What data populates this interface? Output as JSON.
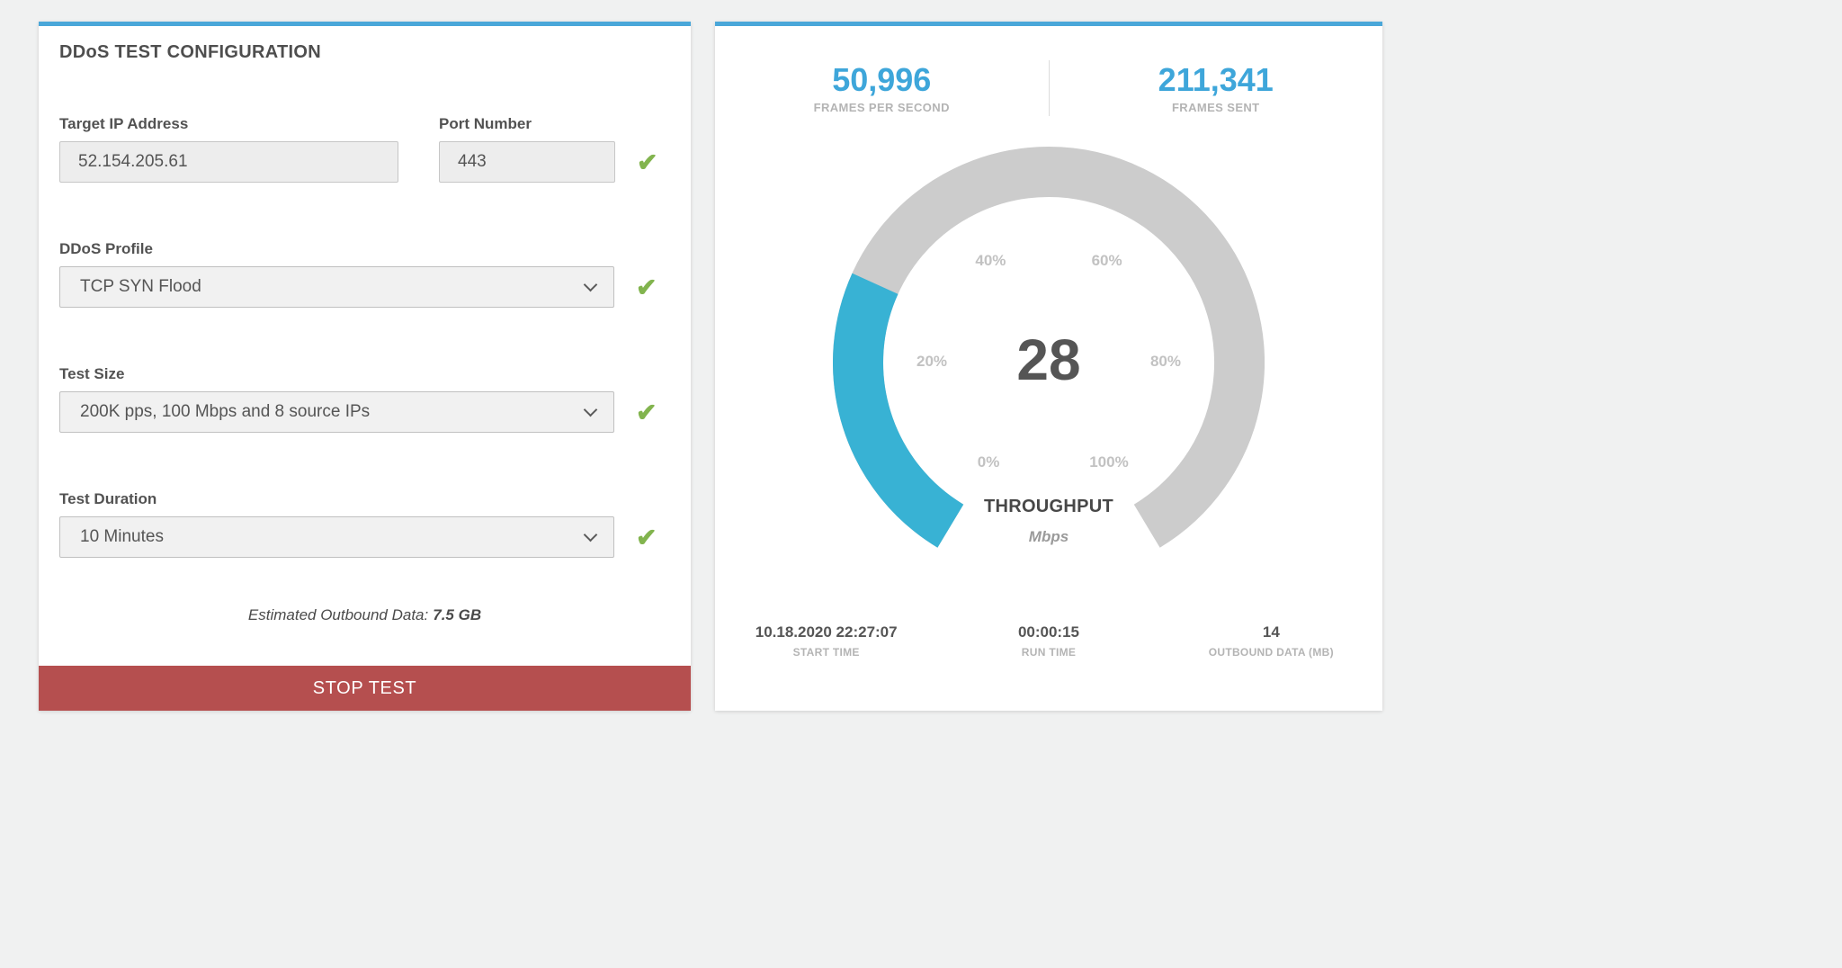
{
  "colors": {
    "page_bg": "#f0f1f1",
    "panel_top_border": "#4aa7d9",
    "accent_blue": "#3ea6da",
    "gauge_fill": "#38b2d4",
    "gauge_track": "#cccccc",
    "check_green": "#82b44e",
    "button_red": "#b54f4f"
  },
  "icons": {
    "check": "✔"
  },
  "config_panel": {
    "title": "DDoS TEST CONFIGURATION",
    "fields": {
      "target_ip": {
        "label": "Target IP Address",
        "value": "52.154.205.61"
      },
      "port": {
        "label": "Port Number",
        "value": "443"
      },
      "profile": {
        "label": "DDoS Profile",
        "value": "TCP SYN Flood"
      },
      "test_size": {
        "label": "Test Size",
        "value": "200K pps, 100 Mbps and 8 source IPs"
      },
      "duration": {
        "label": "Test Duration",
        "value": "10 Minutes"
      }
    },
    "estimated_label": "Estimated Outbound Data:",
    "estimated_value": "7.5 GB",
    "stop_button": "STOP TEST"
  },
  "stats_panel": {
    "top_stats": [
      {
        "value": "50,996",
        "label": "FRAMES PER SECOND"
      },
      {
        "value": "211,341",
        "label": "FRAMES SENT"
      }
    ],
    "gauge": {
      "value": 28,
      "display_value": "28",
      "min": 0,
      "max": 100,
      "start_angle": 121,
      "sweep_angle": 298,
      "ticks": [
        "0%",
        "20%",
        "40%",
        "60%",
        "80%",
        "100%"
      ],
      "label": "THROUGHPUT",
      "unit": "Mbps"
    },
    "bottom_stats": [
      {
        "value": "10.18.2020 22:27:07",
        "label": "START TIME"
      },
      {
        "value": "00:00:15",
        "label": "RUN TIME"
      },
      {
        "value": "14",
        "label": "OUTBOUND DATA (MB)"
      }
    ]
  },
  "chart_data": {
    "type": "gauge",
    "title": "THROUGHPUT",
    "unit": "Mbps",
    "value": 28,
    "min": 0,
    "max": 100,
    "tick_labels": [
      "0%",
      "20%",
      "40%",
      "60%",
      "80%",
      "100%"
    ],
    "related_stats": {
      "frames_per_second": 50996,
      "frames_sent": 211341,
      "start_time": "10.18.2020 22:27:07",
      "run_time": "00:00:15",
      "outbound_data_mb": 14
    }
  }
}
